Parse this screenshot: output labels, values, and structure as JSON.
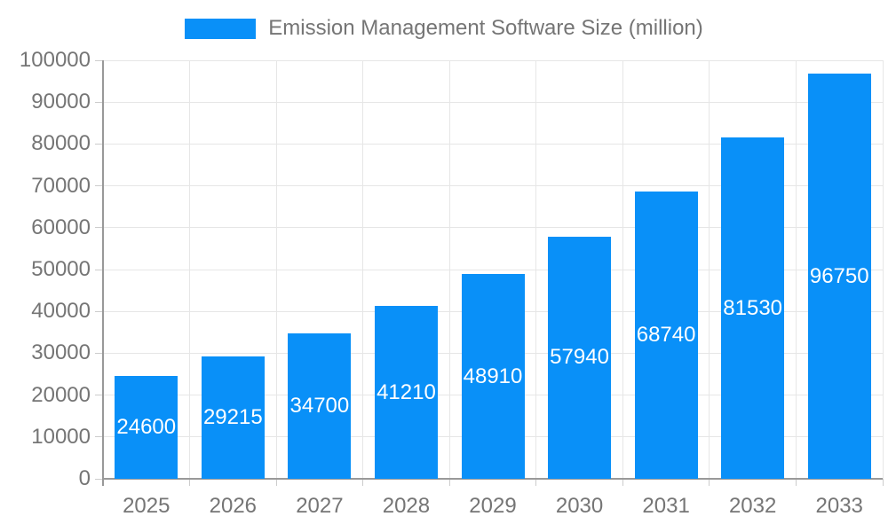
{
  "chart_data": {
    "type": "bar",
    "title": "Emission Management Software Size (million)",
    "categories": [
      "2025",
      "2026",
      "2027",
      "2028",
      "2029",
      "2030",
      "2031",
      "2032",
      "2033"
    ],
    "values": [
      24600,
      29215,
      34700,
      41210,
      48910,
      57940,
      68740,
      81530,
      96750
    ],
    "series": [
      {
        "name": "Emission Management Software Size (million)",
        "values": [
          24600,
          29215,
          34700,
          41210,
          48910,
          57940,
          68740,
          81530,
          96750
        ]
      }
    ],
    "value_labels": [
      "24600",
      "29215",
      "34700",
      "41210",
      "48910",
      "57940",
      "68740",
      "81530",
      "96750"
    ],
    "xlabel": "",
    "ylabel": "",
    "ylim": [
      0,
      100000
    ],
    "y_tick_step": 10000,
    "y_tick_labels": [
      "0",
      "10000",
      "20000",
      "30000",
      "40000",
      "50000",
      "60000",
      "70000",
      "80000",
      "90000",
      "100000"
    ],
    "grid": true,
    "legend_position": "top",
    "colors": {
      "bar": "#0990f8",
      "value_label": "#ffffff",
      "axis_text": "#757575",
      "gridline": "#e6e6e6",
      "axis_line": "#999999",
      "tick": "#cccccc",
      "background": "#ffffff"
    }
  },
  "legend": {
    "label": "Emission Management Software Size (million)"
  }
}
